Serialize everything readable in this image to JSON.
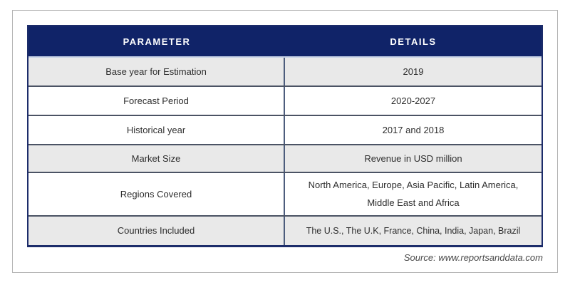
{
  "table": {
    "columns": [
      "PARAMETER",
      "DETAILS"
    ],
    "rows": [
      {
        "parameter": "Base year for Estimation",
        "details": "2019",
        "shaded": true
      },
      {
        "parameter": "Forecast Period",
        "details": "2020-2027",
        "shaded": false
      },
      {
        "parameter": "Historical year",
        "details": "2017 and 2018",
        "shaded": false
      },
      {
        "parameter": "Market Size",
        "details": "Revenue in USD million",
        "shaded": true
      },
      {
        "parameter": "Regions Covered",
        "details": "North America, Europe, Asia Pacific, Latin America, Middle East and Africa",
        "shaded": false
      },
      {
        "parameter": "Countries Included",
        "details": "The U.S., The  U.K, France, China, India, Japan, Brazil",
        "shaded": true
      }
    ]
  },
  "source": {
    "label": "Source: www.reportsanddata.com"
  },
  "colors": {
    "header_bg": "#102368",
    "header_text": "#ffffff",
    "shaded_row_bg": "#e9e9e9",
    "row_separator": "#4b5364",
    "column_divider": "#4d5d7d",
    "table_border": "#1c2c6a",
    "card_border": "#b5b5b5",
    "body_text": "#2e2e2e",
    "source_text": "#484848"
  }
}
